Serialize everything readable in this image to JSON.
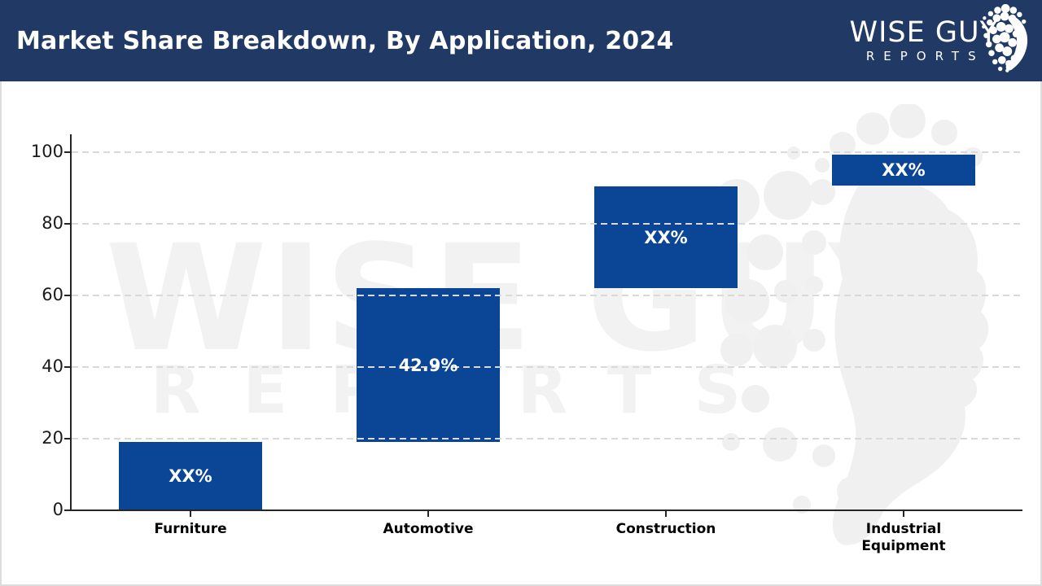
{
  "header": {
    "title": "Market Share Breakdown, By Application, 2024",
    "logo": {
      "wordmark": "WISE GUY",
      "subtext": "REPORTS"
    }
  },
  "watermark": {
    "wordmark": "WISE GUY",
    "subtext": "REPORTS"
  },
  "chart_data": {
    "type": "bar",
    "subtype": "waterfall-floating-segments",
    "title": "Market Share Breakdown, By Application, 2024",
    "categories": [
      "Furniture",
      "Automotive",
      "Construction",
      "Industrial Equipment"
    ],
    "segments": [
      {
        "category": "Furniture",
        "start": 0,
        "end": 19.1,
        "label": "XX%"
      },
      {
        "category": "Automotive",
        "start": 19.1,
        "end": 62.0,
        "label": "42.9%"
      },
      {
        "category": "Construction",
        "start": 62.0,
        "end": 90.4,
        "label": "XX%"
      },
      {
        "category": "Industrial Equipment",
        "start": 90.7,
        "end": 99.4,
        "label": "XX%"
      }
    ],
    "ylim": [
      0,
      100
    ],
    "yticks": [
      0,
      20,
      40,
      60,
      80,
      100
    ],
    "xlabel": "",
    "ylabel": "",
    "legend_position": "none",
    "grid": "horizontal-dashed-over-bars",
    "bar_color": "#0a4596",
    "bar_label_color": "#ffffff",
    "grid_color": "#d9d9d9",
    "axis_color": "#262626",
    "tick_label_color": "#1a1a1a",
    "category_label_color": "#000000"
  },
  "colors": {
    "header_bg": "#203a65",
    "page_bg": "#ffffff",
    "frame_border": "#dcdcdc",
    "watermark": "#f2f2f2"
  }
}
